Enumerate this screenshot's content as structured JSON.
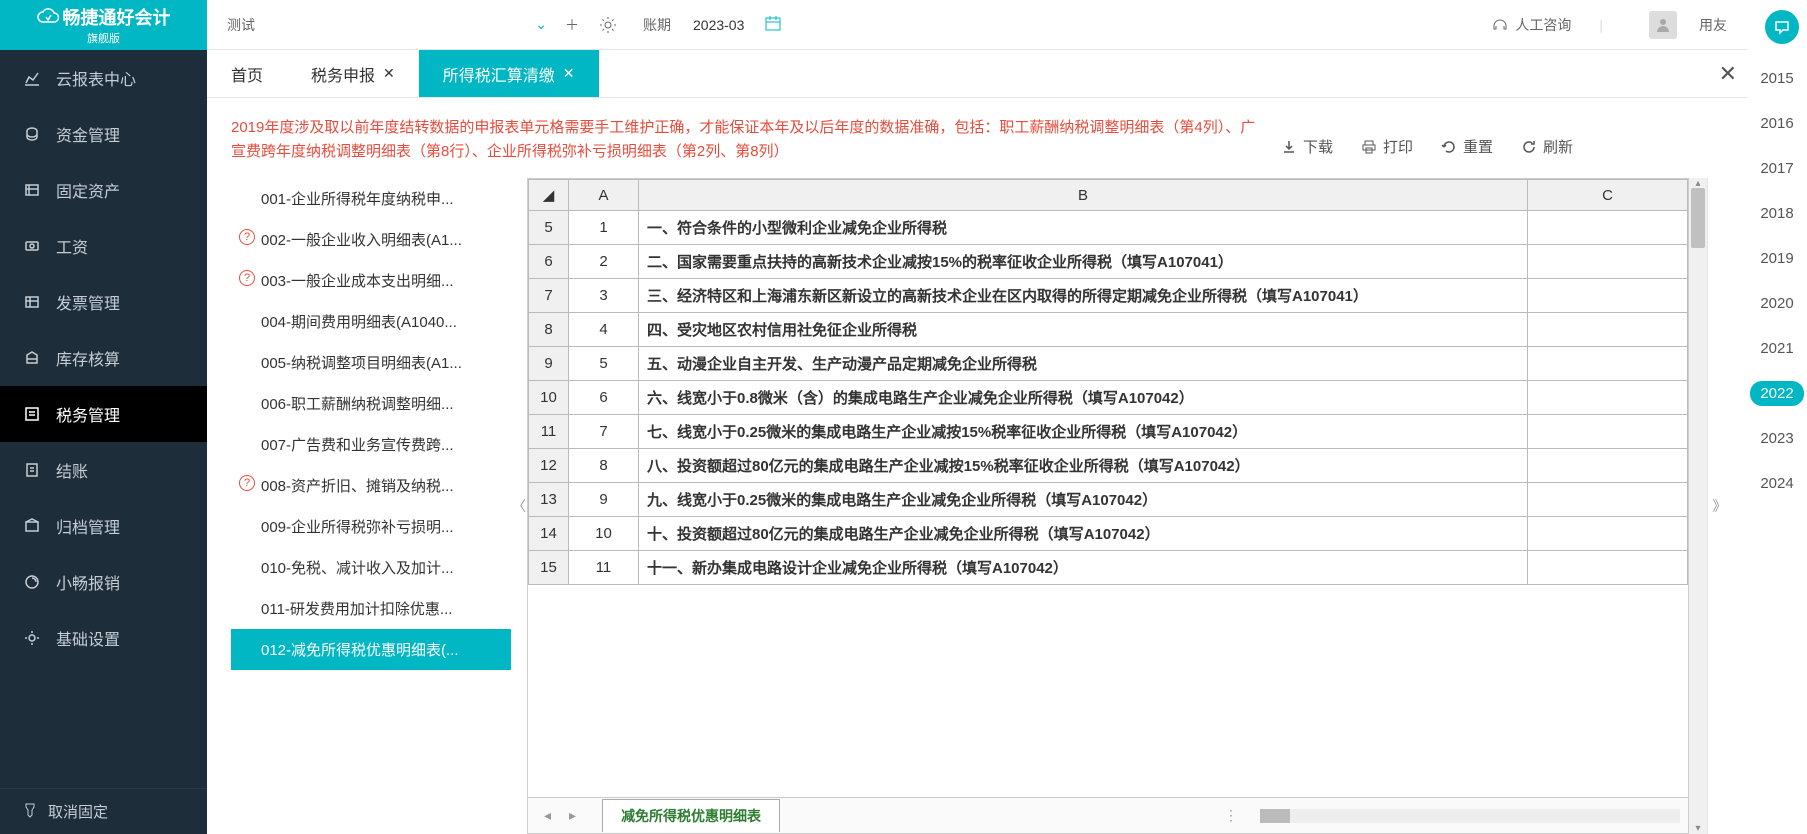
{
  "logo": {
    "name": "畅捷通好会计",
    "edition": "旗舰版"
  },
  "sidebar": {
    "items": [
      {
        "label": "云报表中心"
      },
      {
        "label": "资金管理"
      },
      {
        "label": "固定资产"
      },
      {
        "label": "工资"
      },
      {
        "label": "发票管理"
      },
      {
        "label": "库存核算"
      },
      {
        "label": "税务管理"
      },
      {
        "label": "结账"
      },
      {
        "label": "归档管理"
      },
      {
        "label": "小畅报销"
      },
      {
        "label": "基础设置"
      }
    ],
    "pin": "取消固定"
  },
  "top": {
    "company": "测试",
    "period_label": "账期",
    "period_value": "2023-03",
    "consult": "人工咨询",
    "user": "用友"
  },
  "tabs": {
    "items": [
      {
        "label": "首页",
        "closable": false
      },
      {
        "label": "税务申报",
        "closable": true
      },
      {
        "label": "所得税汇算清缴",
        "closable": true
      }
    ]
  },
  "notice": "2019年度涉及取以前年度结转数据的申报表单元格需要手工维护正确，才能保证本年及以后年度的数据准确，包括：职工薪酬纳税调整明细表（第4列）、广宣费跨年度纳税调整明细表（第8行）、企业所得税弥补亏损明细表（第2列、第8列）",
  "actions": {
    "download": "下载",
    "print": "打印",
    "reset": "重置",
    "refresh": "刷新"
  },
  "forms": [
    {
      "label": "001-企业所得税年度纳税申...",
      "q": false
    },
    {
      "label": "002-一般企业收入明细表(A1...",
      "q": true
    },
    {
      "label": "003-一般企业成本支出明细...",
      "q": true
    },
    {
      "label": "004-期间费用明细表(A1040...",
      "q": false
    },
    {
      "label": "005-纳税调整项目明细表(A1...",
      "q": false
    },
    {
      "label": "006-职工薪酬纳税调整明细...",
      "q": false
    },
    {
      "label": "007-广告费和业务宣传费跨...",
      "q": false
    },
    {
      "label": "008-资产折旧、摊销及纳税...",
      "q": true
    },
    {
      "label": "009-企业所得税弥补亏损明...",
      "q": false
    },
    {
      "label": "010-免税、减计收入及加计...",
      "q": false
    },
    {
      "label": "011-研发费用加计扣除优惠...",
      "q": false
    },
    {
      "label": "012-减免所得税优惠明细表(...",
      "q": false
    }
  ],
  "sheet": {
    "cols": [
      "A",
      "B",
      "C"
    ],
    "rows": [
      {
        "n": "5",
        "a": "1",
        "b": "一、符合条件的小型微利企业减免企业所得税"
      },
      {
        "n": "6",
        "a": "2",
        "b": "二、国家需要重点扶持的高新技术企业减按15%的税率征收企业所得税（填写A107041）"
      },
      {
        "n": "7",
        "a": "3",
        "b": "三、经济特区和上海浦东新区新设立的高新技术企业在区内取得的所得定期减免企业所得税（填写A107041）"
      },
      {
        "n": "8",
        "a": "4",
        "b": "四、受灾地区农村信用社免征企业所得税"
      },
      {
        "n": "9",
        "a": "5",
        "b": "五、动漫企业自主开发、生产动漫产品定期减免企业所得税"
      },
      {
        "n": "10",
        "a": "6",
        "b": "六、线宽小于0.8微米（含）的集成电路生产企业减免企业所得税（填写A107042）"
      },
      {
        "n": "11",
        "a": "7",
        "b": "七、线宽小于0.25微米的集成电路生产企业减按15%税率征收企业所得税（填写A107042）"
      },
      {
        "n": "12",
        "a": "8",
        "b": "八、投资额超过80亿元的集成电路生产企业减按15%税率征收企业所得税（填写A107042）"
      },
      {
        "n": "13",
        "a": "9",
        "b": "九、线宽小于0.25微米的集成电路生产企业减免企业所得税（填写A107042）"
      },
      {
        "n": "14",
        "a": "10",
        "b": "十、投资额超过80亿元的集成电路生产企业减免企业所得税（填写A107042）"
      },
      {
        "n": "15",
        "a": "11",
        "b": "十一、新办集成电路设计企业减免企业所得税（填写A107042）"
      }
    ],
    "tab": "减免所得税优惠明细表"
  },
  "years": [
    "2015",
    "2016",
    "2017",
    "2018",
    "2019",
    "2020",
    "2021",
    "2022",
    "2023",
    "2024"
  ],
  "colors": {
    "accent": "#00b7c3",
    "sidebar": "#1e2d3a",
    "warn": "#e74c3c"
  }
}
